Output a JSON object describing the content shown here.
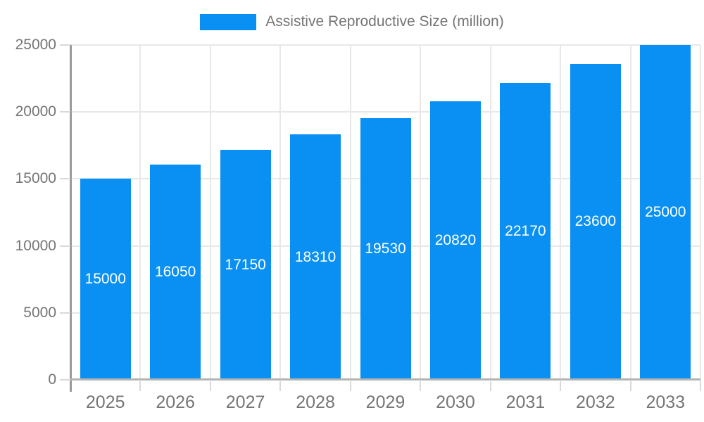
{
  "legend": {
    "label": "Assistive Reproductive Size (million)",
    "swatch_color": "#0a90f2",
    "position": "top-center"
  },
  "chart_data": {
    "type": "bar",
    "title": "",
    "categories": [
      "2025",
      "2026",
      "2027",
      "2028",
      "2029",
      "2030",
      "2031",
      "2032",
      "2033"
    ],
    "series": [
      {
        "name": "Assistive Reproductive Size (million)",
        "values": [
          15000,
          16050,
          17150,
          18310,
          19530,
          20820,
          22170,
          23600,
          25000
        ],
        "color": "#0a90f2"
      }
    ],
    "xlabel": "",
    "ylabel": "",
    "ylim": [
      0,
      25000
    ],
    "yticks": [
      0,
      5000,
      10000,
      15000,
      20000,
      25000
    ],
    "grid": true,
    "legend_position": "top",
    "bar_value_labels": {
      "visible": true,
      "position": "inside-center",
      "color": "#ffffff"
    }
  },
  "colors": {
    "background": "#ffffff",
    "bar": "#0a90f2",
    "axis_text": "#757575",
    "bar_label_text": "#ffffff",
    "gridline": "#e8e8e8",
    "axis_line": "#9a9a9a",
    "baseline": "#b3b3b3",
    "tick": "#d9d9d9"
  }
}
